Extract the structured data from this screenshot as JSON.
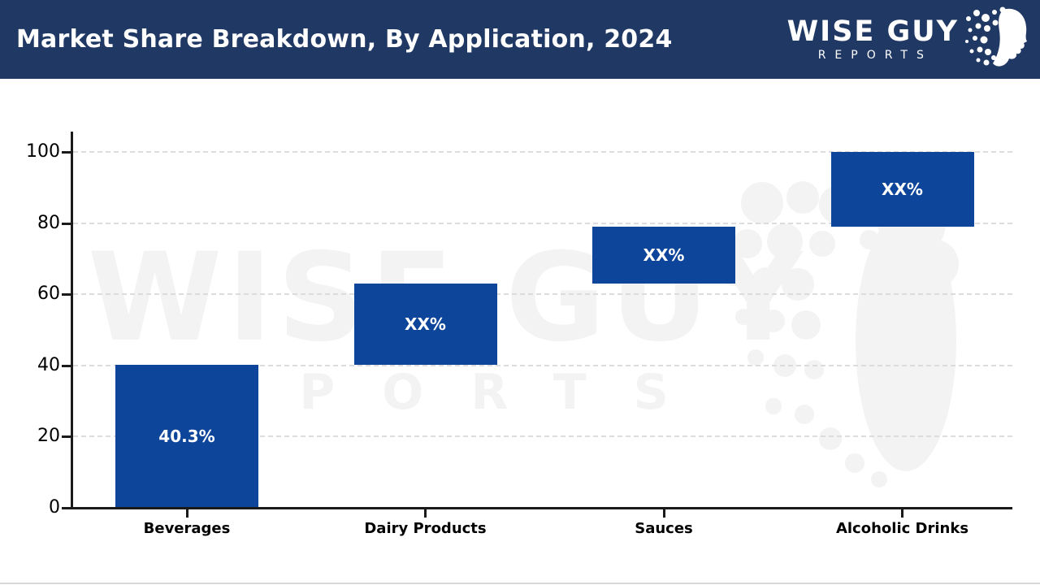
{
  "header": {
    "title": "Market Share Breakdown, By Application, 2024",
    "logo": {
      "primary": "WISE GUY",
      "secondary": "REPORTS"
    }
  },
  "watermark": {
    "primary": "WISE GUY",
    "secondary": "REPORTS"
  },
  "chart_data": {
    "type": "bar",
    "subtype": "waterfall",
    "title": "Market Share Breakdown, By Application, 2024",
    "categories": [
      "Beverages",
      "Dairy Products",
      "Sauces",
      "Alcoholic Drinks"
    ],
    "segments": [
      {
        "category": "Beverages",
        "start": 0,
        "end": 40.3,
        "label": "40.3%"
      },
      {
        "category": "Dairy Products",
        "start": 40.3,
        "end": 63,
        "label": "XX%"
      },
      {
        "category": "Sauces",
        "start": 63,
        "end": 79,
        "label": "XX%"
      },
      {
        "category": "Alcoholic Drinks",
        "start": 79,
        "end": 100,
        "label": "XX%"
      }
    ],
    "y_ticks": [
      0,
      20,
      40,
      60,
      80,
      100
    ],
    "ylim": [
      0,
      100
    ],
    "xlabel": "",
    "ylabel": "",
    "grid": "horizontal-dashed",
    "legend": "none",
    "bar_color": "#0c4599",
    "bar_label_color": "#ffffff"
  },
  "colors": {
    "header_bg": "#203864",
    "bar": "#0c4599",
    "gridline": "#dcdcdc",
    "axis": "#1a1a1a",
    "watermark": "#f3f3f3",
    "bottom_line": "#d8d8d8"
  }
}
